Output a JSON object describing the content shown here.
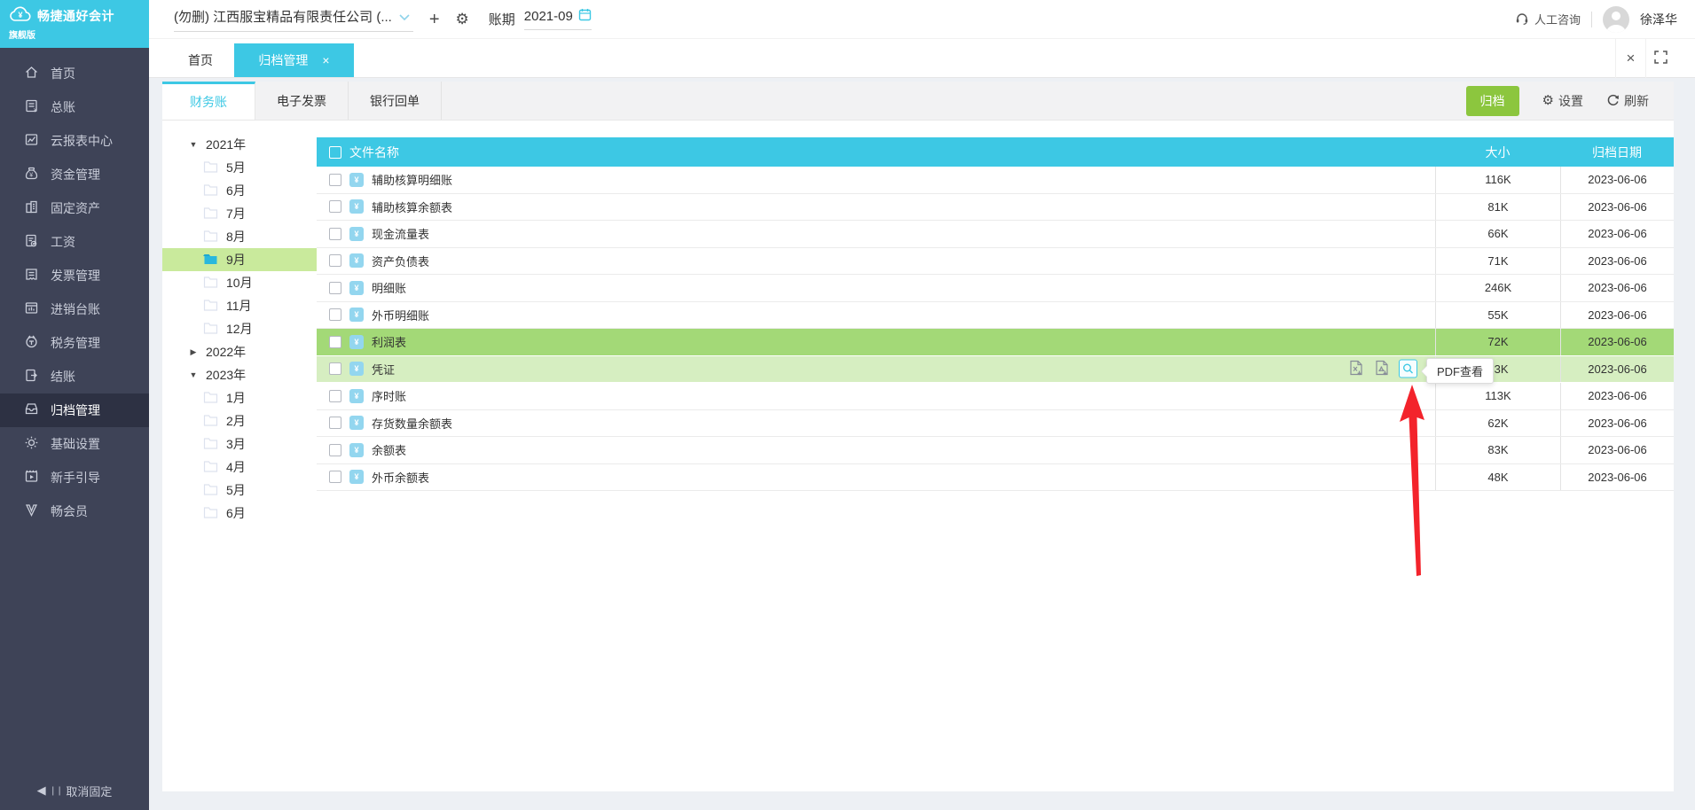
{
  "logo": {
    "title": "畅捷通好会计",
    "subtitle": "旗舰版"
  },
  "header": {
    "company": "(勿删) 江西服宝精品有限责任公司 (...",
    "period_label": "账期",
    "period_value": "2021-09",
    "support_label": "人工咨询",
    "user_name": "徐泽华"
  },
  "tabs": [
    {
      "label": "首页",
      "active": false
    },
    {
      "label": "归档管理",
      "active": true,
      "close_glyph": "×"
    }
  ],
  "sidebar": {
    "items": [
      {
        "label": "首页",
        "icon": "home-icon"
      },
      {
        "label": "总账",
        "icon": "ledger-icon"
      },
      {
        "label": "云报表中心",
        "icon": "cloud-report-icon"
      },
      {
        "label": "资金管理",
        "icon": "funds-icon"
      },
      {
        "label": "固定资产",
        "icon": "fixed-assets-icon"
      },
      {
        "label": "工资",
        "icon": "salary-icon"
      },
      {
        "label": "发票管理",
        "icon": "invoice-icon"
      },
      {
        "label": "进销台账",
        "icon": "purchase-sales-icon"
      },
      {
        "label": "税务管理",
        "icon": "tax-icon"
      },
      {
        "label": "结账",
        "icon": "closing-icon"
      },
      {
        "label": "归档管理",
        "icon": "archive-icon",
        "active": true
      },
      {
        "label": "基础设置",
        "icon": "settings-icon"
      },
      {
        "label": "新手引导",
        "icon": "guide-icon"
      },
      {
        "label": "畅会员",
        "icon": "member-icon"
      }
    ],
    "unpin_label": "取消固定"
  },
  "subtabs": [
    {
      "label": "财务账",
      "active": true
    },
    {
      "label": "电子发票",
      "active": false
    },
    {
      "label": "银行回单",
      "active": false
    }
  ],
  "toolbar": {
    "archive_label": "归档",
    "settings_label": "设置",
    "refresh_label": "刷新"
  },
  "tree": {
    "years": [
      {
        "label": "2021年",
        "expanded": true,
        "months": [
          "5月",
          "6月",
          "7月",
          "8月",
          "9月",
          "10月",
          "11月",
          "12月"
        ],
        "selected_month": "9月"
      },
      {
        "label": "2022年",
        "expanded": false,
        "months": []
      },
      {
        "label": "2023年",
        "expanded": true,
        "months": [
          "1月",
          "2月",
          "3月",
          "4月",
          "5月",
          "6月"
        ]
      }
    ]
  },
  "table": {
    "headers": [
      "文件名称",
      "大小",
      "归档日期"
    ],
    "rows": [
      {
        "name": "辅助核算明细账",
        "size": "116K",
        "date": "2023-06-06"
      },
      {
        "name": "辅助核算余额表",
        "size": "81K",
        "date": "2023-06-06"
      },
      {
        "name": "现金流量表",
        "size": "66K",
        "date": "2023-06-06"
      },
      {
        "name": "资产负债表",
        "size": "71K",
        "date": "2023-06-06"
      },
      {
        "name": "明细账",
        "size": "246K",
        "date": "2023-06-06"
      },
      {
        "name": "外币明细账",
        "size": "55K",
        "date": "2023-06-06"
      },
      {
        "name": "利润表",
        "size": "72K",
        "date": "2023-06-06",
        "highlight": "strong"
      },
      {
        "name": "凭证",
        "size": "53K",
        "date": "2023-06-06",
        "highlight": "light",
        "actions": true
      },
      {
        "name": "序时账",
        "size": "113K",
        "date": "2023-06-06"
      },
      {
        "name": "存货数量余额表",
        "size": "62K",
        "date": "2023-06-06"
      },
      {
        "name": "余额表",
        "size": "83K",
        "date": "2023-06-06"
      },
      {
        "name": "外币余额表",
        "size": "48K",
        "date": "2023-06-06"
      }
    ],
    "row_action_icons": [
      "excel-download-icon",
      "pdf-download-icon",
      "pdf-view-icon"
    ]
  },
  "tooltip": {
    "text": "PDF查看"
  },
  "icons": {
    "close": "×",
    "plus": "+",
    "gear": "⚙",
    "caret_down": "▼",
    "caret_right": "▶",
    "unpin_arrow": "◀",
    "file_glyph": "¥"
  },
  "colors": {
    "accent": "#3dc8e4",
    "sidebar_bg": "#3e4357",
    "sidebar_active_bg": "#2d3143",
    "archive_button": "#8cc63e",
    "row_highlight_strong": "#a3d977",
    "row_highlight_light": "#d6eec1",
    "tree_selected_bg": "#c9ea9c",
    "annotation_arrow": "#f3232b",
    "content_bg": "#edf0f4"
  }
}
